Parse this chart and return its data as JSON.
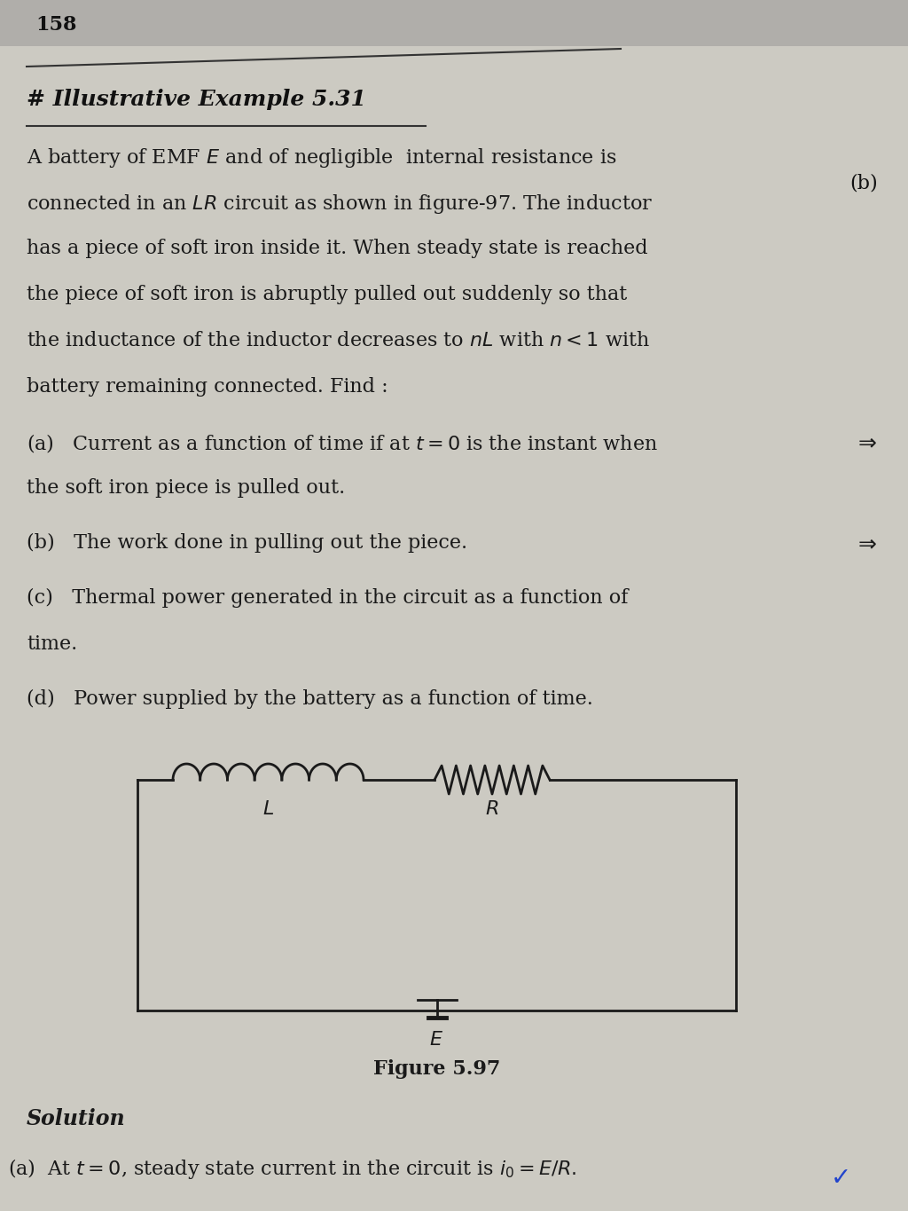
{
  "page_number": "158",
  "title": "# Illustrative Example 5.31",
  "para_lines": [
    "A battery of EMF $E$ and of negligible  internal resistance is",
    "connected in an $LR$ circuit as shown in figure-97. The inductor",
    "has a piece of soft iron inside it. When steady state is reached",
    "the piece of soft iron is abruptly pulled out suddenly so that",
    "the inductance of the inductor decreases to $nL$ with $n < 1$ with",
    "battery remaining connected. Find :"
  ],
  "item_a_1": "(a)   Current as a function of time if at $t = 0$ is the instant when",
  "item_a_2": "the soft iron piece is pulled out.",
  "item_b": "(b)   The work done in pulling out the piece.",
  "item_c_1": "(c)   Thermal power generated in the circuit as a function of",
  "item_c_2": "time.",
  "item_d": "(d)   Power supplied by the battery as a function of time.",
  "figure_caption": "Figure 5.97",
  "solution_label": "Solution",
  "solution_text": "(a)  At $t = 0$, steady state current in the circuit is $i_0 = E/R.$",
  "bg_color": "#cccac2",
  "text_color": "#1a1a1a",
  "header_bg": "#b0aeaa"
}
